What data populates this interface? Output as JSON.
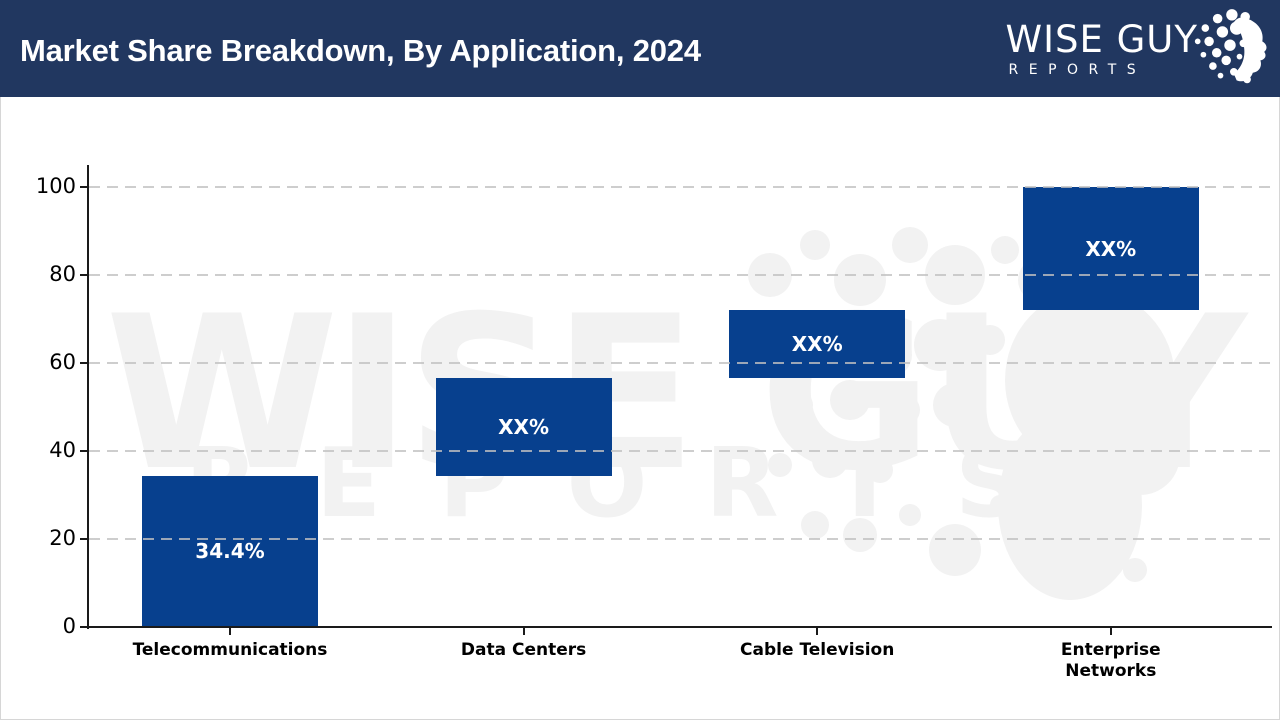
{
  "header": {
    "title": "Market Share Breakdown, By Application, 2024",
    "logo": {
      "brand_line1": "WISE GUY",
      "brand_line2": "REPORTS"
    }
  },
  "watermark": {
    "line1": "WISE GUY",
    "line2": "REPORTS"
  },
  "colors": {
    "header_bg": "#213760",
    "bar": "#07408e",
    "bar_label": "#ffffff",
    "title_text": "#ffffff",
    "axis": "#1a1a1a",
    "gridline": "#cccccc",
    "watermark": "#f2f2f2"
  },
  "chart_data": {
    "type": "bar",
    "subtype": "waterfall",
    "title": "Market Share Breakdown, By Application, 2024",
    "categories": [
      "Telecommunications",
      "Data Centers",
      "Cable Television",
      "Enterprise\nNetworks"
    ],
    "segments": [
      {
        "category": "Telecommunications",
        "start": 0,
        "end": 34.4,
        "label": "34.4%"
      },
      {
        "category": "Data Centers",
        "start": 34.4,
        "end": 56.5,
        "label": "XX%"
      },
      {
        "category": "Cable Television",
        "start": 56.5,
        "end": 72,
        "label": "XX%"
      },
      {
        "category": "Enterprise Networks",
        "start": 72,
        "end": 100,
        "label": "XX%"
      }
    ],
    "xlabel": "",
    "ylabel": "",
    "ylim": [
      0,
      100
    ],
    "yticks": [
      0,
      20,
      40,
      60,
      80,
      100
    ],
    "grid": "horizontal-dashed",
    "legend": null,
    "bar_color": "#07408e",
    "bar_label_color": "#ffffff"
  }
}
